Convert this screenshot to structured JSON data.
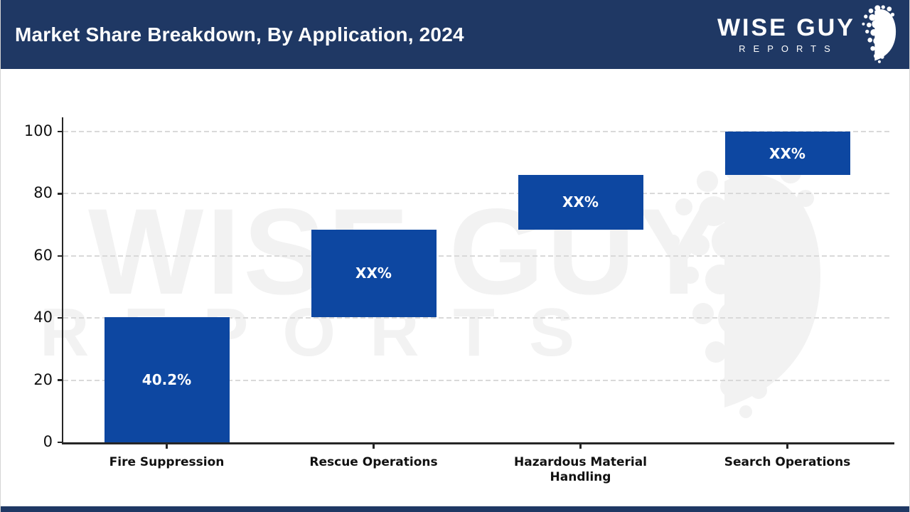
{
  "colors": {
    "header_bg": "#1f3864",
    "footer_bg": "#1f3864",
    "bar": "#0d47a1",
    "axis": "#262626",
    "grid": "#d9d9d9",
    "watermark": "#f2f2f2",
    "bar_label": "#ffffff"
  },
  "header": {
    "title": "Market Share Breakdown, By Application, 2024",
    "brand_name": "WISE GUY",
    "brand_sub": "REPORTS"
  },
  "watermark": {
    "line1": "WISE GUY",
    "line2": "REPORTS"
  },
  "chart_data": {
    "type": "bar",
    "subtype": "waterfall",
    "title": "Market Share Breakdown, By Application, 2024",
    "categories": [
      "Fire Suppression",
      "Rescue Operations",
      "Hazardous Material Handling",
      "Search Operations"
    ],
    "bars": [
      {
        "category": "Fire Suppression",
        "start": 0,
        "end": 40.2,
        "value": 40.2,
        "label": "40.2%"
      },
      {
        "category": "Rescue Operations",
        "start": 40.2,
        "end": 68.5,
        "value": 28.3,
        "label": "XX%"
      },
      {
        "category": "Hazardous Material Handling",
        "start": 68.5,
        "end": 86.0,
        "value": 17.5,
        "label": "XX%"
      },
      {
        "category": "Search Operations",
        "start": 86.0,
        "end": 100.0,
        "value": 14.0,
        "label": "XX%"
      }
    ],
    "y_ticks": [
      0,
      20,
      40,
      60,
      80,
      100
    ],
    "ylim": [
      0,
      104.6
    ],
    "xlabel": "",
    "ylabel": "",
    "grid": "dashed-horizontal",
    "legend": "none",
    "bar_color": "#0d47a1",
    "value_label_color": "#ffffff"
  }
}
